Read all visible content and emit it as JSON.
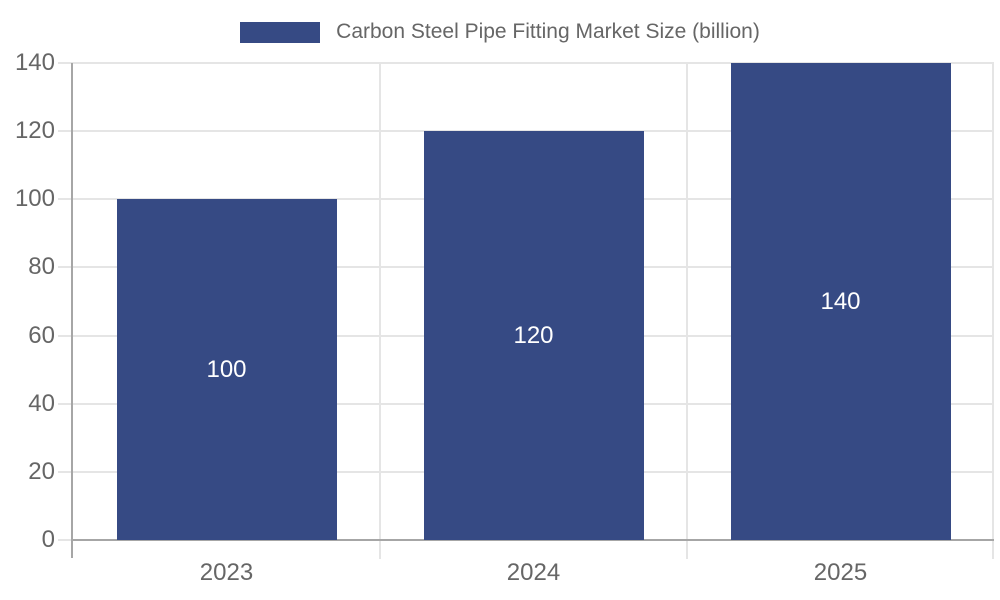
{
  "legend": {
    "label": "Carbon Steel Pipe Fitting Market Size (billion)"
  },
  "colors": {
    "bar": "#364a84",
    "axis": "#a6a6a6",
    "grid": "#e5e5e5",
    "tick_text": "#666666",
    "bar_label": "#ffffff",
    "background": "#ffffff"
  },
  "chart_data": {
    "type": "bar",
    "title": "Carbon Steel Pipe Fitting Market Size (billion)",
    "series_name": "Carbon Steel Pipe Fitting Market Size (billion)",
    "categories": [
      "2023",
      "2024",
      "2025"
    ],
    "values": [
      100,
      120,
      140
    ],
    "bar_value_labels": [
      "100",
      "120",
      "140"
    ],
    "xlabel": "",
    "ylabel": "",
    "ylim": [
      0,
      140
    ],
    "yticks": [
      0,
      20,
      40,
      60,
      80,
      100,
      120,
      140
    ],
    "grid": true,
    "legend_position": "top-center"
  }
}
